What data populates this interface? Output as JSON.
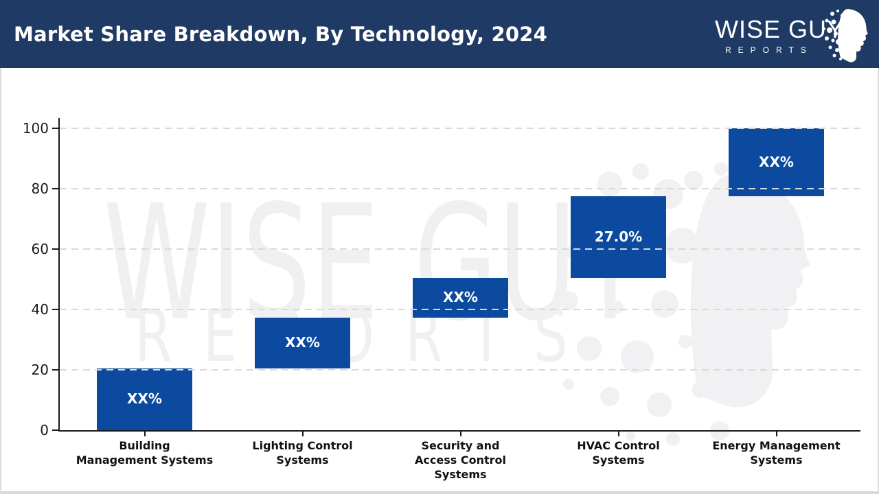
{
  "header": {
    "title": "Market Share Breakdown, By Technology, 2024",
    "logo": {
      "name": "WISE GUY",
      "subname": "REPORTS"
    }
  },
  "watermark": {
    "line1": "WISE GUY",
    "line2": "REPORTS"
  },
  "chart_data": {
    "type": "bar",
    "subtype": "floating-waterfall",
    "title": "Market Share Breakdown, By Technology, 2024",
    "xlabel": "",
    "ylabel": "",
    "categories": [
      "Building Management Systems",
      "Lighting Control Systems",
      "Security and Access Control Systems",
      "HVAC Control Systems",
      "Energy Management Systems"
    ],
    "category_lines": [
      [
        "Building",
        "Management Systems"
      ],
      [
        "Lighting Control",
        "Systems"
      ],
      [
        "Security and",
        "Access Control",
        "Systems"
      ],
      [
        "HVAC Control",
        "Systems"
      ],
      [
        "Energy Management",
        "Systems"
      ]
    ],
    "segments": [
      {
        "label": "XX%",
        "start": 0,
        "end": 20.5
      },
      {
        "label": "XX%",
        "start": 20.5,
        "end": 37.3
      },
      {
        "label": "XX%",
        "start": 37.3,
        "end": 50.5
      },
      {
        "label": "27.0%",
        "start": 50.5,
        "end": 77.5
      },
      {
        "label": "XX%",
        "start": 77.5,
        "end": 100
      }
    ],
    "yticks": [
      0,
      20,
      40,
      60,
      80,
      100
    ],
    "ylim": [
      0,
      103.5
    ],
    "grid": "horizontal-dashed-above-bars",
    "legend": "none",
    "colors": {
      "bar": "#0b4a9e",
      "bar_label": "#ffffff",
      "axis": "#1a1a1a",
      "grid": "#d9d9d9",
      "header_bg": "#1f3a64",
      "watermark": "#f0f0f2"
    }
  }
}
